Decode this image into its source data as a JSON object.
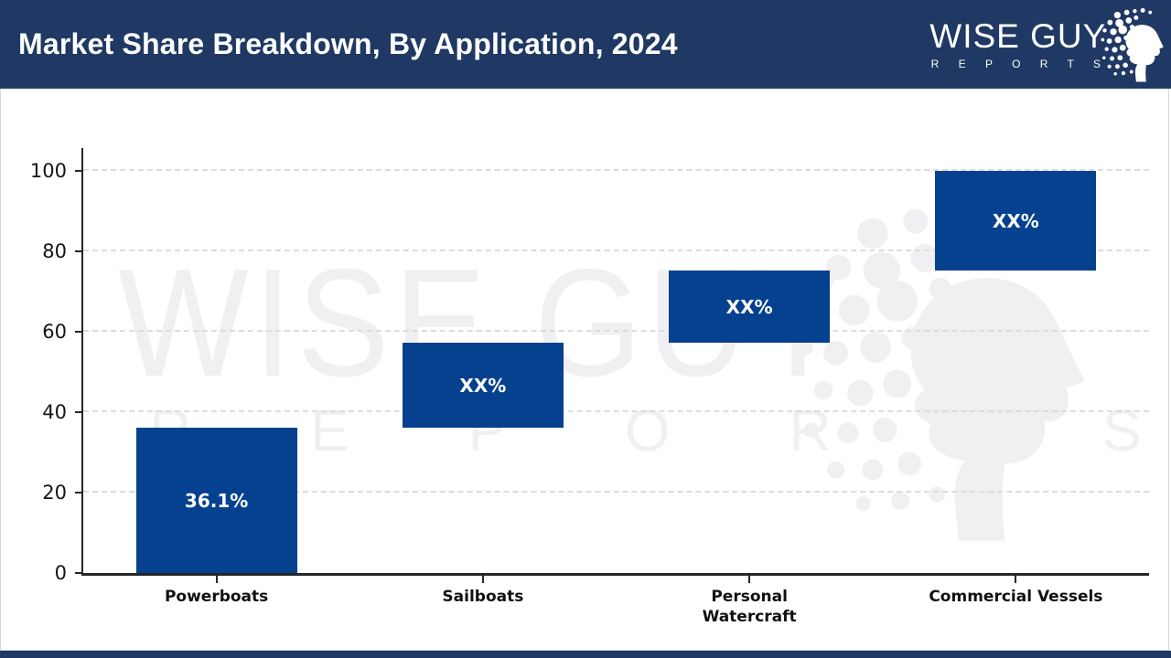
{
  "header": {
    "title": "Market Share Breakdown, By Application, 2024",
    "bg_color": "#1F3864",
    "logo_line1": "WISE GUY",
    "logo_line2": "R E P O R T S"
  },
  "watermark": {
    "line1": "WISE GUY",
    "line2": "R E P O R T S"
  },
  "chart_data": {
    "type": "bar",
    "variant": "waterfall-floating-segments",
    "title": "Market Share Breakdown, By Application, 2024",
    "xlabel": "",
    "ylabel": "",
    "ylim": [
      0,
      100
    ],
    "yticks": [
      0,
      20,
      40,
      60,
      80,
      100
    ],
    "grid": "horizontal-dashed",
    "legend": "none",
    "bar_color": "#05418E",
    "bar_label_color": "#FFFFFF",
    "axis_color": "#262626",
    "categories": [
      "Powerboats",
      "Sailboats",
      "Personal\nWatercraft",
      "Commercial Vessels"
    ],
    "segments": [
      {
        "category": "Powerboats",
        "start": 0,
        "end": 36.1,
        "label": "36.1%"
      },
      {
        "category": "Sailboats",
        "start": 36.1,
        "end": 57.3,
        "label": "XX%"
      },
      {
        "category": "Personal Watercraft",
        "start": 57.3,
        "end": 75.2,
        "label": "XX%"
      },
      {
        "category": "Commercial Vessels",
        "start": 75.2,
        "end": 100,
        "label": "XX%"
      }
    ]
  }
}
